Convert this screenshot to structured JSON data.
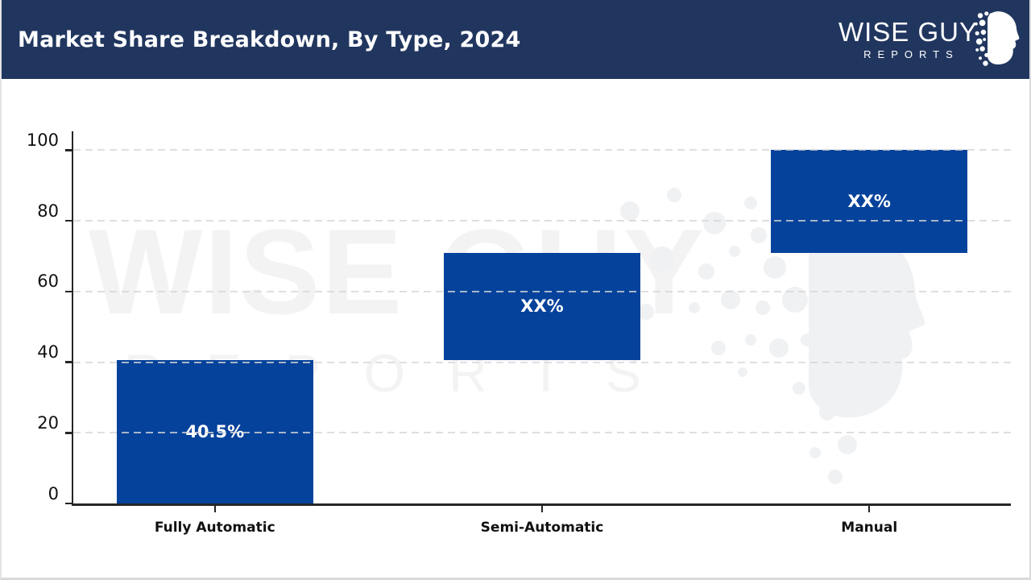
{
  "page": {
    "background": "#ffffff",
    "edge_border_color": "#d9d9d9"
  },
  "header": {
    "background": "#21365f",
    "title": "Market Share Breakdown, By Type, 2024",
    "title_color": "#ffffff",
    "logo": {
      "line1": "WISE GUY",
      "line2": "REPORTS",
      "color": "#ffffff"
    }
  },
  "watermark": {
    "line1": "WISE GUY",
    "line2": "REPORTS",
    "color": "#f3f3f3"
  },
  "chart_data": {
    "type": "bar",
    "subtype": "floating-segment (waterfall-style market share)",
    "title": "Market Share Breakdown, By Type, 2024",
    "categories": [
      "Fully Automatic",
      "Semi-Automatic",
      "Manual"
    ],
    "bars": [
      {
        "category": "Fully Automatic",
        "start": 0,
        "end": 40.5,
        "label": "40.5%"
      },
      {
        "category": "Semi-Automatic",
        "start": 40.5,
        "end": 71,
        "label": "XX%"
      },
      {
        "category": "Manual",
        "start": 71,
        "end": 100,
        "label": "XX%"
      }
    ],
    "bar_color": "#05429b",
    "bar_label_color": "#ffffff",
    "yticks": [
      0,
      20,
      40,
      60,
      80,
      100
    ],
    "ylim": [
      0,
      105.3
    ],
    "xlabel": "",
    "ylabel": "",
    "grid": {
      "axis": "y",
      "style": "dashed",
      "color": "#d8d8d8",
      "drawn_over_bars": true
    },
    "axis_color": "#262626",
    "tick_label_color": "#111111",
    "legend": null
  }
}
